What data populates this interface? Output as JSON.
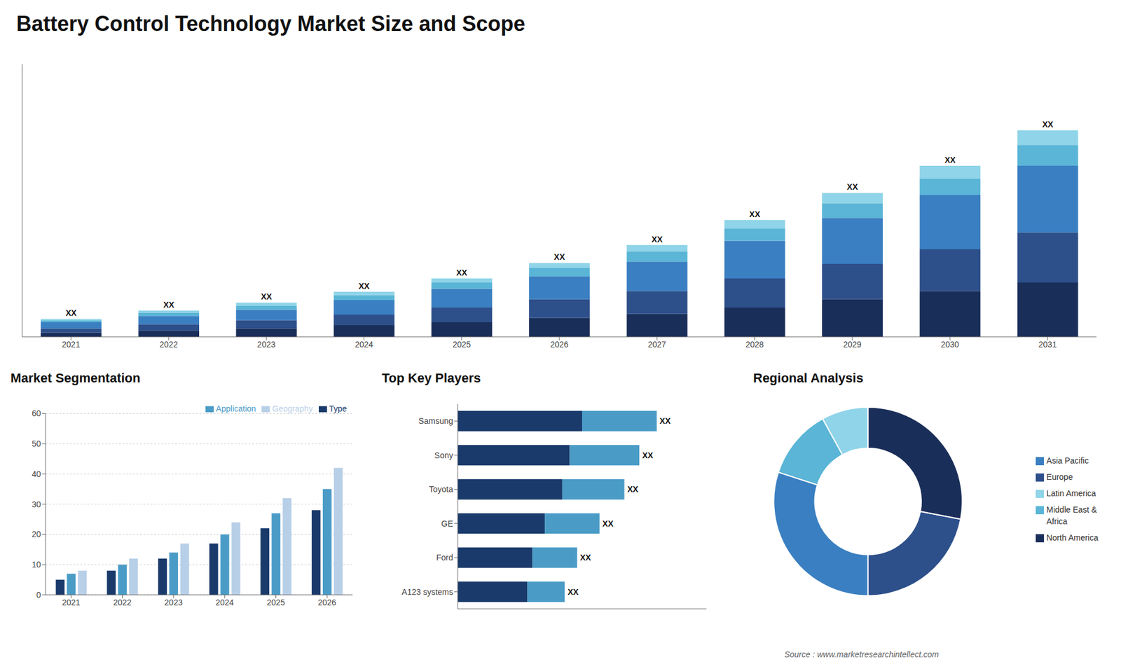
{
  "title": "Battery Control Technology Market Size and Scope",
  "annotations": [
    "Source : www.marketresearchintellect.com"
  ],
  "chart_data": [
    {
      "type": "bar",
      "stacked": true,
      "categories": [
        "2021",
        "2022",
        "2023",
        "2024",
        "2025",
        "2026",
        "2027",
        "2028",
        "2029",
        "2030",
        "2031"
      ],
      "series": [
        {
          "color": "#1a2e5a",
          "values": [
            1,
            1.5,
            2,
            2.8,
            3.5,
            4.5,
            5.5,
            7,
            9,
            11,
            13
          ]
        },
        {
          "color": "#2d4f8a",
          "values": [
            1,
            1.5,
            2,
            2.5,
            3.5,
            4.5,
            5.5,
            7,
            8.5,
            10,
            12
          ]
        },
        {
          "color": "#3a7fc1",
          "values": [
            1.5,
            2,
            2.5,
            3.5,
            4.5,
            5.5,
            7,
            9,
            11,
            13,
            16
          ]
        },
        {
          "color": "#5ab5d6",
          "values": [
            0.5,
            0.8,
            1,
            1.2,
            1.5,
            2,
            2.5,
            3,
            3.5,
            4,
            5
          ]
        },
        {
          "color": "#8fd4e8",
          "values": [
            0.3,
            0.5,
            0.7,
            0.8,
            1,
            1.2,
            1.5,
            2,
            2.5,
            3,
            3.5
          ]
        }
      ],
      "ylim": [
        0,
        65.34
      ],
      "tick_labels": "x",
      "annotations": [
        "XX",
        "XX",
        "XX",
        "XX",
        "XX",
        "XX",
        "XX",
        "XX",
        "XX",
        "XX",
        "XX"
      ]
    },
    {
      "type": "bar",
      "title": "Market Segmentation",
      "categories": [
        "2021",
        "2022",
        "2023",
        "2024",
        "2025",
        "2026"
      ],
      "series": [
        {
          "name": "Type",
          "color": "#1a3a6b",
          "values": [
            5,
            8,
            12,
            17,
            22,
            28
          ]
        },
        {
          "name": "Application",
          "color": "#4a9cc7",
          "values": [
            7,
            10,
            14,
            20,
            27,
            35
          ]
        },
        {
          "name": "Geography",
          "color": "#b8cfe8",
          "values": [
            8,
            12,
            17,
            24,
            32,
            42
          ]
        }
      ],
      "ylim": [
        0,
        60
      ],
      "yticks": [
        0,
        10,
        20,
        30,
        40,
        50,
        60
      ],
      "grid": true,
      "legend": "upper right"
    },
    {
      "type": "bar",
      "title": "Top Key Players",
      "orientation": "horizontal",
      "stacked": true,
      "categories": [
        "Samsung",
        "Sony",
        "Toyota",
        "GE",
        "Ford",
        "A123 systems"
      ],
      "series": [
        {
          "color": "#1a3a6b",
          "values": [
            5,
            4.5,
            4.2,
            3.5,
            3,
            2.8
          ]
        },
        {
          "color": "#4a9cc7",
          "values": [
            3,
            2.8,
            2.5,
            2.2,
            1.8,
            1.5
          ]
        }
      ],
      "xlim": [
        0,
        10
      ],
      "tick_labels": "y",
      "annotations": [
        "XX",
        "XX",
        "XX",
        "XX",
        "XX",
        "XX"
      ]
    },
    {
      "type": "donut",
      "title": "Regional Analysis",
      "categories": [
        "Latin America",
        "Middle East &\nAfrica",
        "Asia Pacific",
        "Europe",
        "North America"
      ],
      "values": [
        8,
        12,
        30,
        22,
        28
      ],
      "colors": [
        "#8fd4e8",
        "#5ab5d6",
        "#3a7fc1",
        "#2d4f8a",
        "#1a2e5a"
      ],
      "legend": "right"
    }
  ]
}
